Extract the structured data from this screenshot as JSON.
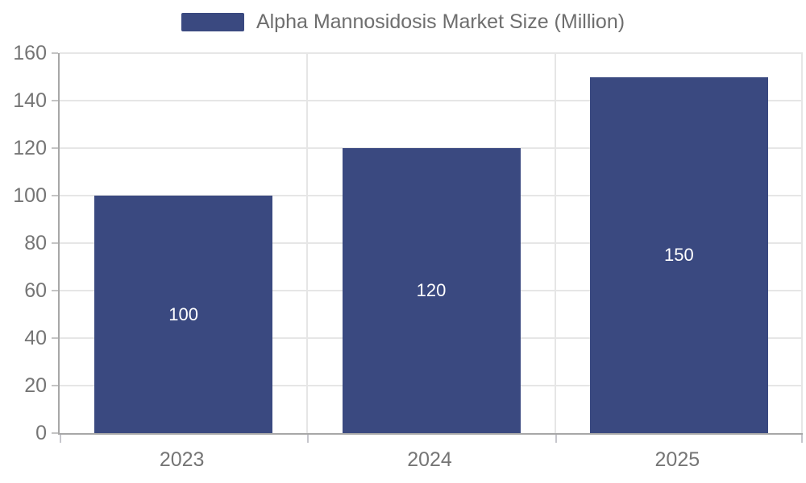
{
  "legend": {
    "label": "Alpha Mannosidosis Market Size (Million)",
    "swatch_color": "#3a4980"
  },
  "chart_data": {
    "type": "bar",
    "title": "Alpha Mannosidosis Market Size (Million)",
    "categories": [
      "2023",
      "2024",
      "2025"
    ],
    "values": [
      100,
      120,
      150
    ],
    "series": [
      {
        "name": "Alpha Mannosidosis Market Size (Million)",
        "values": [
          100,
          120,
          150
        ]
      }
    ],
    "bar_labels": [
      "100",
      "120",
      "150"
    ],
    "bar_label_position": "inside-center",
    "xlabel": "",
    "ylabel": "",
    "ylim": [
      0,
      160
    ],
    "yticks": [
      0,
      20,
      40,
      60,
      80,
      100,
      120,
      140,
      160
    ],
    "grid": true,
    "legend_position": "top-center",
    "colors": {
      "bar": "#3a4980",
      "bar_label": "#ffffff",
      "axis_line": "#a7a7a7",
      "gridline": "#e6e6e6",
      "tick_label": "#757575",
      "legend_text": "#6e6e6e",
      "background": "#ffffff"
    }
  }
}
